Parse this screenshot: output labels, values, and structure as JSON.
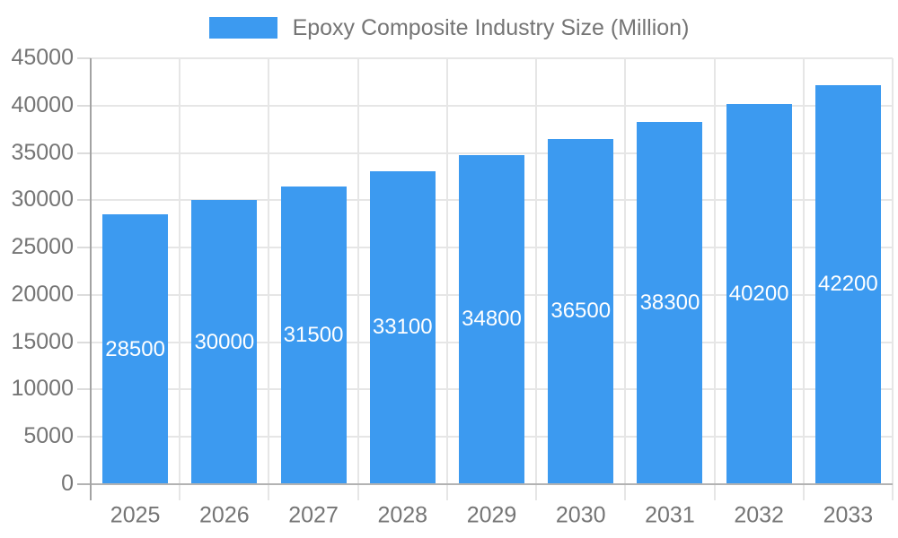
{
  "legend": {
    "label": "Epoxy Composite Industry Size (Million)"
  },
  "colors": {
    "bar": "#3C9AF0",
    "text": "#757575",
    "value_label": "#ffffff",
    "gridline": "#e6e6e6",
    "baseline": "#b3b3b3",
    "axis_line": "#a3a3a3",
    "tick": "#dcdcdc",
    "background": "#ffffff"
  },
  "chart_data": {
    "type": "bar",
    "title": "Epoxy Composite Industry Size (Million)",
    "categories": [
      "2025",
      "2026",
      "2027",
      "2028",
      "2029",
      "2030",
      "2031",
      "2032",
      "2033"
    ],
    "series": [
      {
        "name": "Epoxy Composite Industry Size (Million)",
        "values": [
          28500,
          30000,
          31500,
          33100,
          34800,
          36500,
          38300,
          40200,
          42200
        ]
      }
    ],
    "value_labels": [
      "28500",
      "30000",
      "31500",
      "33100",
      "34800",
      "36500",
      "38300",
      "40200",
      "42200"
    ],
    "xlabel": "",
    "ylabel": "",
    "ylim": [
      0,
      45000
    ],
    "yticks": [
      0,
      5000,
      10000,
      15000,
      20000,
      25000,
      30000,
      35000,
      40000,
      45000
    ],
    "grid": true,
    "legend_position": "top",
    "value_label_position": "inside-middle"
  }
}
